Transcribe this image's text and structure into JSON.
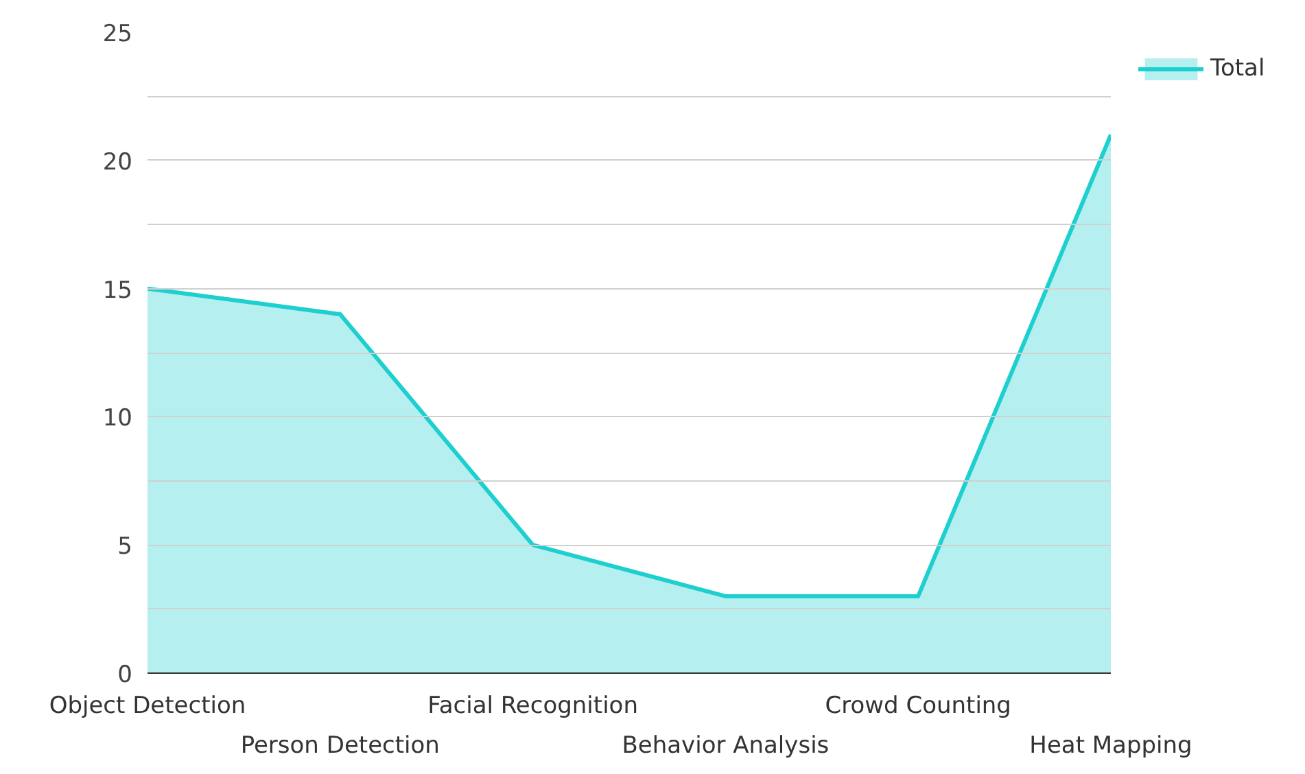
{
  "chart_data": {
    "type": "area",
    "categories": [
      "Object Detection",
      "Person Detection",
      "Facial Recognition",
      "Behavior Analysis",
      "Crowd Counting",
      "Heat Mapping"
    ],
    "series": [
      {
        "name": "Total",
        "color": "#1ecfcf",
        "values": [
          15,
          14,
          5,
          3,
          3,
          21
        ]
      }
    ],
    "ylim": [
      0,
      25
    ],
    "yticks": [
      0,
      {
        "value": 2.5,
        "label": null
      },
      5,
      {
        "value": 7.5,
        "label": null
      },
      10,
      {
        "value": 12.5,
        "label": null
      },
      15,
      {
        "value": 17.5,
        "label": null
      },
      20,
      {
        "value": 22.5,
        "label": null
      },
      25
    ],
    "grid": "y",
    "legend": "top right"
  }
}
